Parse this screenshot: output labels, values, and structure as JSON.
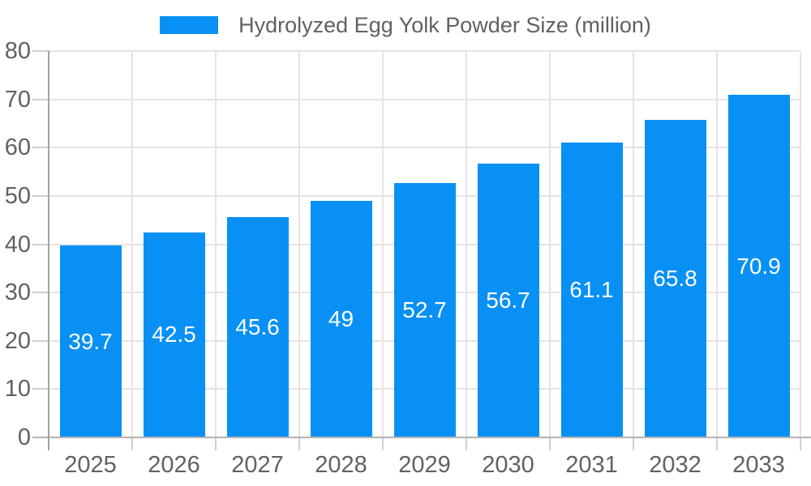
{
  "chart_data": {
    "type": "bar",
    "legend": "Hydrolyzed Egg Yolk Powder Size (million)",
    "legend_position": "top",
    "categories": [
      "2025",
      "2026",
      "2027",
      "2028",
      "2029",
      "2030",
      "2031",
      "2032",
      "2033"
    ],
    "series": [
      {
        "name": "Hydrolyzed Egg Yolk Powder Size (million)",
        "values": [
          39.7,
          42.5,
          45.6,
          49,
          52.7,
          56.7,
          61.1,
          65.8,
          70.9
        ]
      }
    ],
    "value_labels": [
      "39.7",
      "42.5",
      "45.6",
      "49",
      "52.7",
      "56.7",
      "61.1",
      "65.8",
      "70.9"
    ],
    "xlabel": "",
    "ylabel": "",
    "ylim": [
      0,
      80
    ],
    "y_ticks": [
      0,
      10,
      20,
      30,
      40,
      50,
      60,
      70,
      80
    ],
    "grid": true
  },
  "colors": {
    "bar": "#0990f5",
    "grid": "#e4e4e4",
    "axis": "#a3a3a3",
    "baseline": "#b3b3b3",
    "tick": "#cfcfcf",
    "text": "#616161",
    "value_label": "#ffffff",
    "background": "#ffffff"
  }
}
